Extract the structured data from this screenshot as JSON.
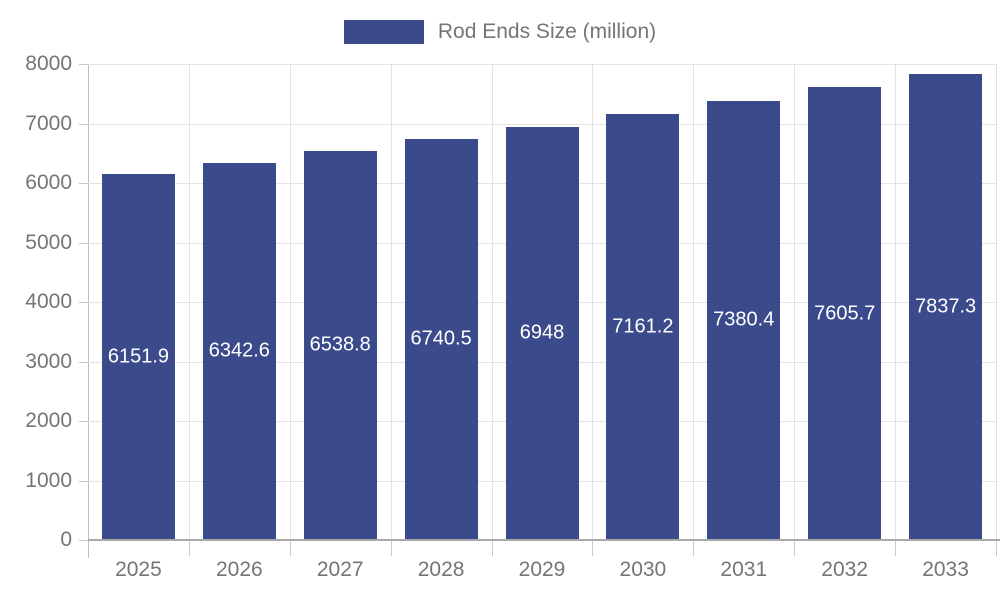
{
  "legend": {
    "label": "Rod Ends Size (million)",
    "swatch_color": "#3b4a8b"
  },
  "chart_data": {
    "type": "bar",
    "title": "",
    "xlabel": "",
    "ylabel": "",
    "categories": [
      "2025",
      "2026",
      "2027",
      "2028",
      "2029",
      "2030",
      "2031",
      "2032",
      "2033"
    ],
    "series": [
      {
        "name": "Rod Ends Size (million)",
        "values": [
          6151.9,
          6342.6,
          6538.8,
          6740.5,
          6948,
          7161.2,
          7380.4,
          7605.7,
          7837.3
        ],
        "value_labels": [
          "6151.9",
          "6342.6",
          "6538.8",
          "6740.5",
          "6948",
          "7161.2",
          "7380.4",
          "7605.7",
          "7837.3"
        ]
      }
    ],
    "ylim": [
      0,
      8000
    ],
    "yticks": [
      0,
      1000,
      2000,
      3000,
      4000,
      5000,
      6000,
      7000,
      8000
    ],
    "grid": true,
    "legend_position": "top-center",
    "bar_color": "#3b4a8b",
    "value_label_color": "#ffffff",
    "axis_text_color": "#757575",
    "gridline_color": "#e3e3e3"
  }
}
